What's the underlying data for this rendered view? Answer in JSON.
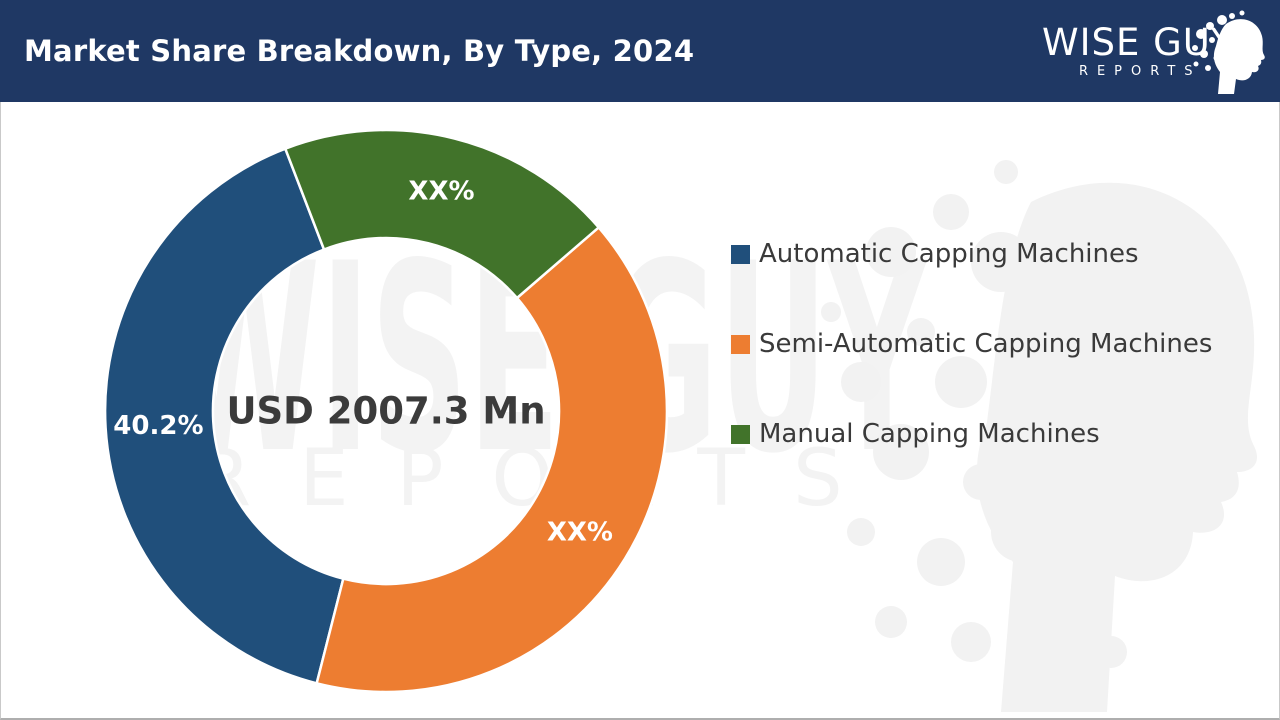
{
  "header": {
    "title": "Market Share Breakdown, By Type, 2024",
    "logo": {
      "line1": "WISE GUY",
      "line2": "REPORTS"
    }
  },
  "watermark": {
    "line1": "WISE GUY",
    "line2": "REPORTS"
  },
  "chart_data": {
    "type": "pie",
    "subtype": "donut",
    "title": "Market Share Breakdown, By Type, 2024",
    "center_label": "USD 2007.3 Mn",
    "legend_position": "right",
    "start_angle_deg_clockwise_from_top": 339,
    "series": [
      {
        "name": "Automatic Capping Machines",
        "value_pct": 40.2,
        "label": "40.2%",
        "color": "#204F7B"
      },
      {
        "name": "Semi-Automatic Capping Machines",
        "value_pct": 40.3,
        "label": "XX%",
        "color": "#ED7D31"
      },
      {
        "name": "Manual Capping Machines",
        "value_pct": 19.5,
        "label": "XX%",
        "color": "#41732A"
      }
    ]
  }
}
